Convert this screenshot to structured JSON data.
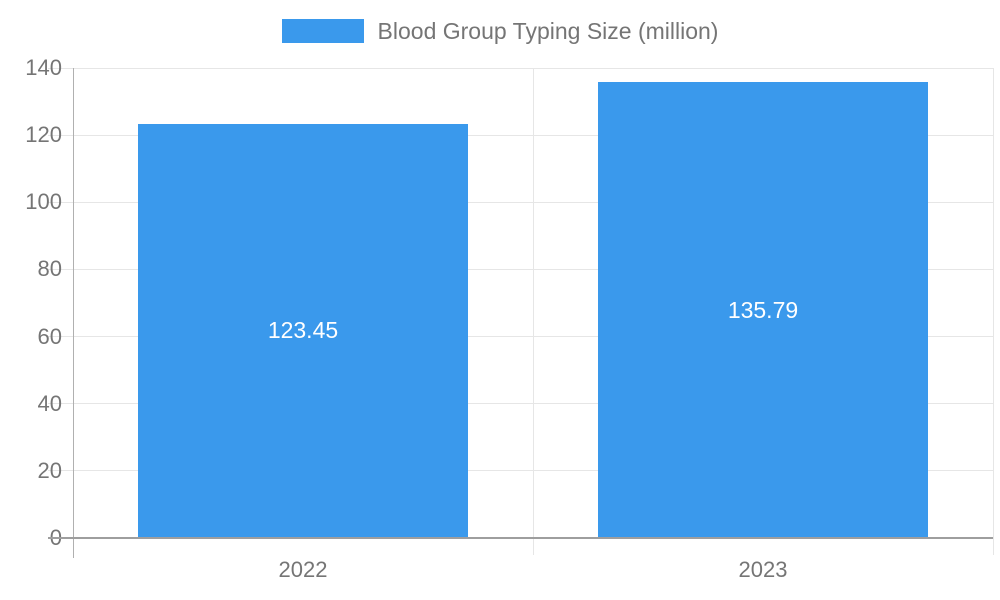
{
  "chart_data": {
    "type": "bar",
    "title": "",
    "legend": "Blood Group Typing Size (million)",
    "legend_position": "top-center",
    "categories": [
      "2022",
      "2023"
    ],
    "series": [
      {
        "name": "Blood Group Typing Size (million)",
        "values": [
          123.45,
          135.79
        ],
        "labels": [
          "123.45",
          "135.79"
        ]
      }
    ],
    "xlabel": "",
    "ylabel": "",
    "ylim": [
      0,
      140
    ],
    "yticks": [
      0,
      20,
      40,
      60,
      80,
      100,
      120,
      140
    ],
    "grid": true,
    "colors": {
      "bar": "#3A99EC",
      "grid": "#e6e6e6",
      "axis": "#b0b0b0",
      "baseline": "#9e9e9e",
      "text": "#757575",
      "value_label": "#ffffff",
      "background": "#ffffff"
    }
  }
}
